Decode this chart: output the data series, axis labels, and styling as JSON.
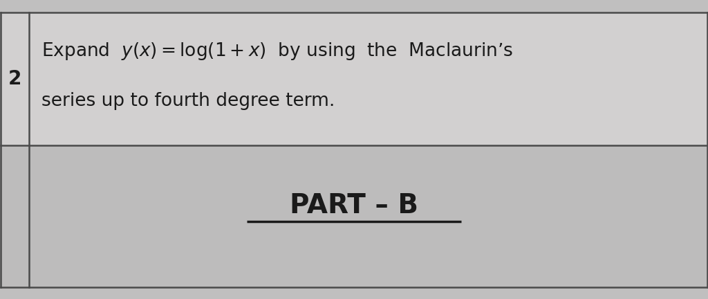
{
  "background_color": "#c0bfbf",
  "top_cell_bg": "#d2d0d0",
  "bottom_cell_bg": "#bdbcbc",
  "number_text": "2",
  "line1_prefix": "Expand  ",
  "line1_math": "y(x) = log(1 + x)",
  "line1_suffix": "  by using  the  Maclaurin’s",
  "line2": "series up to fourth degree term.",
  "part_text": "PART – B",
  "grid_color": "#4a4a4a",
  "text_color": "#1a1a1a",
  "number_fontsize": 20,
  "main_fontsize": 19,
  "part_fontsize": 28,
  "fig_width": 10.24,
  "fig_height": 4.32
}
